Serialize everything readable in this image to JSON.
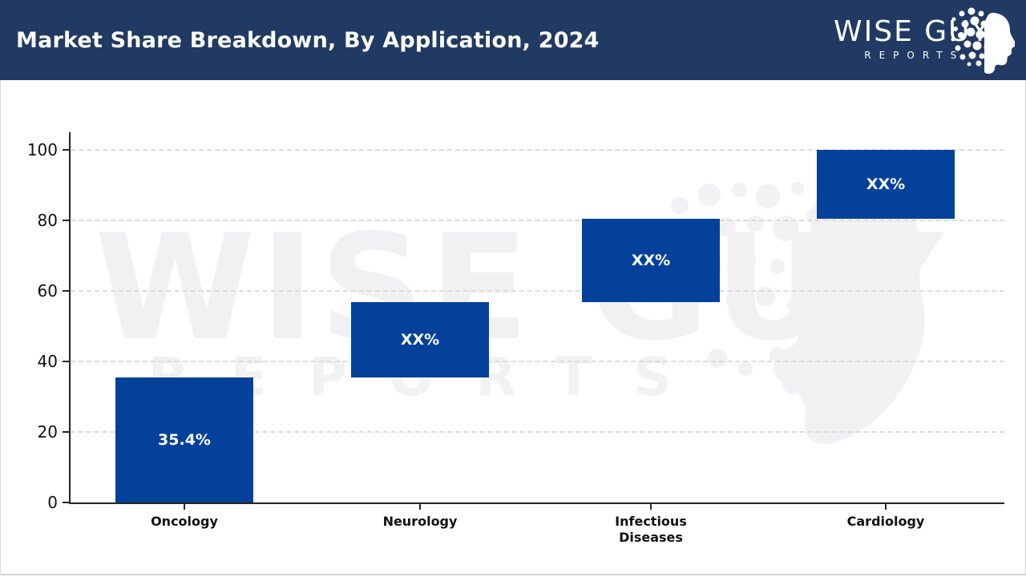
{
  "header": {
    "title": "Market Share Breakdown, By Application, 2024",
    "logo_line1": "WISE GUY",
    "logo_line2": "REPORTS"
  },
  "watermark": {
    "line1": "WISE GUY",
    "line2": "REPORTS"
  },
  "colors": {
    "header_bg": "#213a63",
    "bar_fill": "#04419b",
    "bar_label_text": "#ffffff",
    "grid_line": "#dcdcdc",
    "axis_line": "#262626",
    "watermark": "#f2f2f4"
  },
  "icons": {
    "logo_face": "dot-face-profile",
    "watermark_head": "dot-head-silhouette"
  },
  "chart_data": {
    "type": "bar",
    "subtype": "waterfall",
    "title": "Market Share Breakdown, By Application, 2024",
    "xlabel": "",
    "ylabel": "",
    "ylim": [
      0,
      100
    ],
    "yticks": [
      0,
      20,
      40,
      60,
      80,
      100
    ],
    "grid": "horizontal-dashed",
    "legend": "none",
    "categories": [
      "Oncology",
      "Neurology",
      "Infectious Diseases",
      "Cardiology"
    ],
    "segments": [
      {
        "category": "Oncology",
        "axis_label": "Oncology",
        "start": 0,
        "end": 35.4,
        "label": "35.4%"
      },
      {
        "category": "Neurology",
        "axis_label": "Neurology",
        "start": 35.4,
        "end": 56.8,
        "label": "XX%"
      },
      {
        "category": "Infectious Diseases",
        "axis_label": "Infectious\nDiseases",
        "start": 56.8,
        "end": 80.5,
        "label": "XX%"
      },
      {
        "category": "Cardiology",
        "axis_label": "Cardiology",
        "start": 80.5,
        "end": 100,
        "label": "XX%"
      }
    ]
  }
}
